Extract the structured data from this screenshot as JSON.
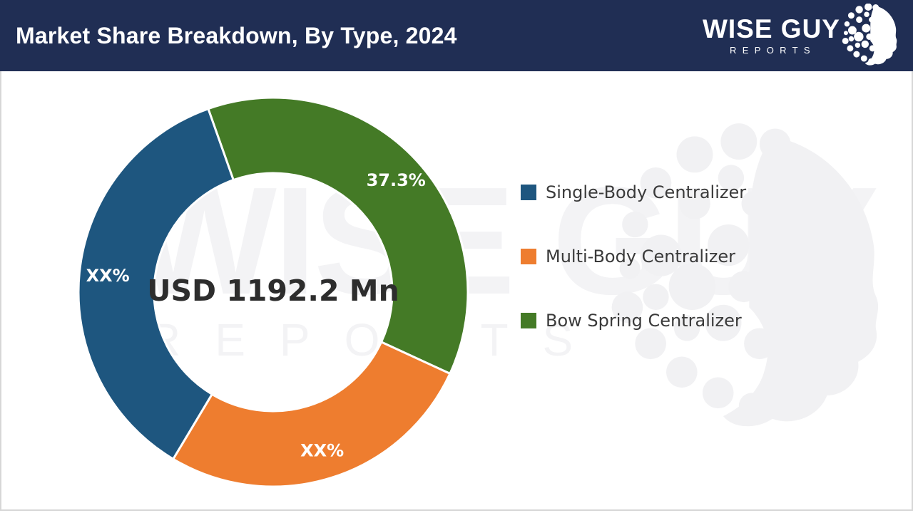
{
  "header": {
    "title": "Market Share Breakdown, By Type, 2024",
    "bg_color": "#202e54",
    "logo": {
      "line1": "WISE GUY",
      "line2": "REPORTS"
    }
  },
  "watermark": {
    "line1": "WISE GUY",
    "line2": "REPORTS"
  },
  "chart_data": {
    "type": "pie",
    "subtype": "donut",
    "title": "Market Share Breakdown, By Type, 2024",
    "center_label": "USD 1192.2 Mn",
    "start_angle_deg": -19.5,
    "direction": "clockwise",
    "slices": [
      {
        "name": "Bow Spring Centralizer",
        "value_pct": 37.3,
        "label": "37.3%",
        "color": "#447A26"
      },
      {
        "name": "Multi-Body Centralizer",
        "value_pct": 26.7,
        "label": "XX%",
        "color": "#EE7D2F"
      },
      {
        "name": "Single-Body Centralizer",
        "value_pct": 36.0,
        "label": "XX%",
        "color": "#1E567F"
      }
    ],
    "legend": [
      {
        "label": "Single-Body Centralizer",
        "color": "#1E567F"
      },
      {
        "label": "Multi-Body Centralizer",
        "color": "#EE7D2F"
      },
      {
        "label": "Bow Spring Centralizer",
        "color": "#447A26"
      }
    ],
    "legend_position": "right"
  }
}
